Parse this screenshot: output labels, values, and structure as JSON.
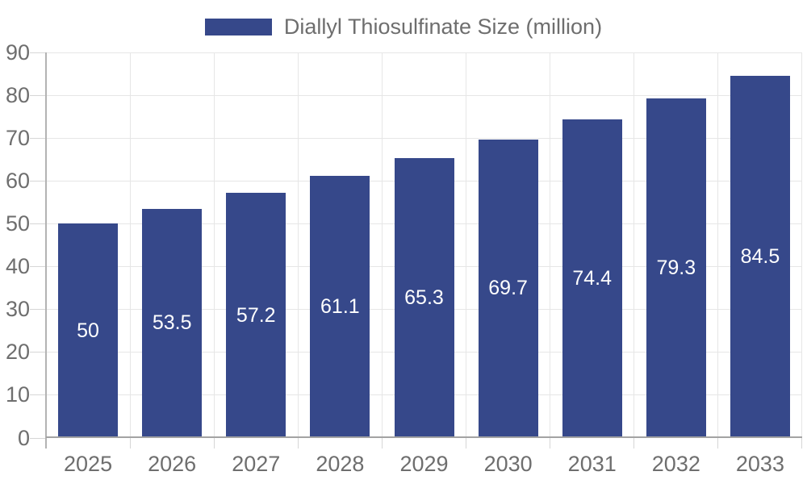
{
  "chart_data": {
    "type": "bar",
    "title": "",
    "categories": [
      "2025",
      "2026",
      "2027",
      "2028",
      "2029",
      "2030",
      "2031",
      "2032",
      "2033"
    ],
    "series": [
      {
        "name": "Diallyl Thiosulfinate Size (million)",
        "values": [
          50,
          53.5,
          57.2,
          61.1,
          65.3,
          69.7,
          74.4,
          79.3,
          84.5
        ],
        "color": "#36488a"
      }
    ],
    "value_labels": [
      "50",
      "53.5",
      "57.2",
      "61.1",
      "65.3",
      "69.7",
      "74.4",
      "79.3",
      "84.5"
    ],
    "xlabel": "",
    "ylabel": "",
    "ylim": [
      0,
      90
    ],
    "yticks": [
      0,
      10,
      20,
      30,
      40,
      50,
      60,
      70,
      80,
      90
    ],
    "grid": true,
    "legend_position": "top"
  },
  "colors": {
    "background": "#ffffff",
    "bar": "#36488a",
    "gridline": "#e6e6e6",
    "x_axis_line": "#a3a3a3",
    "y_axis_line": "#b3b3b3",
    "tick": "#d6d6d6",
    "axis_label": "#6e6e6e",
    "legend_text": "#6e6e6e",
    "value_label": "#ffffff"
  }
}
